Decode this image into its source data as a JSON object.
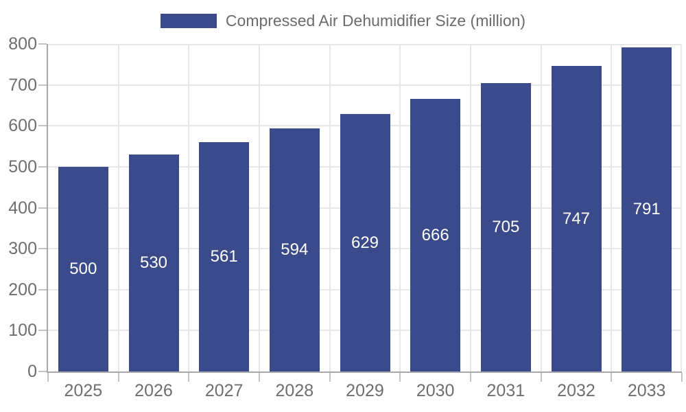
{
  "legend": {
    "label": "Compressed Air Dehumidifier Size (million)"
  },
  "chart_data": {
    "type": "bar",
    "title": "Compressed Air Dehumidifier Size (million)",
    "series_name": "Compressed Air Dehumidifier Size (million)",
    "categories": [
      "2025",
      "2026",
      "2027",
      "2028",
      "2029",
      "2030",
      "2031",
      "2032",
      "2033"
    ],
    "values": [
      500,
      530,
      561,
      594,
      629,
      666,
      705,
      747,
      791
    ],
    "xlabel": "",
    "ylabel": "",
    "ylim": [
      0,
      800
    ],
    "ytick_step": 100,
    "yticks": [
      "0",
      "100",
      "200",
      "300",
      "400",
      "500",
      "600",
      "700",
      "800"
    ],
    "grid": true,
    "legend_position": "top-center",
    "value_label_position": "inside-center",
    "colors": {
      "bar": "#3A4A8A",
      "grid_line": "#E7E7E7",
      "axis_line": "#A8A8A8",
      "tick": "#C2C2C2",
      "axis_text": "#6E6E6E",
      "legend_text": "#6B6B6B",
      "value_text": "#FFFFFF",
      "background": "#FFFFFF"
    }
  }
}
